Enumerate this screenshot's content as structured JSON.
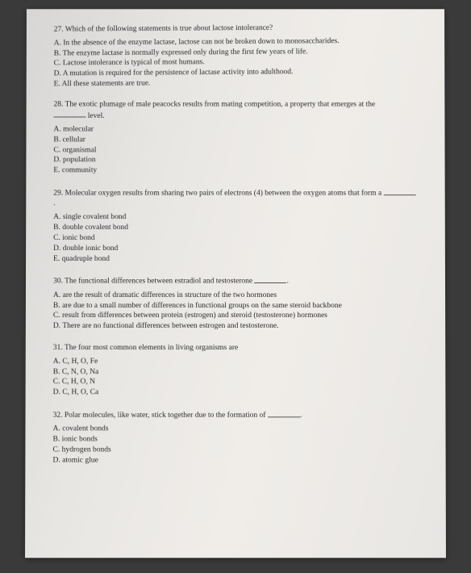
{
  "questions": [
    {
      "number": "27",
      "text": "Which of the following statements is true about lactose intolerance?",
      "options": [
        "A. In the absence of the enzyme lactase, lactose can not be broken down to monosaccharides.",
        "B. The enzyme lactase is normally expressed only during the first few years of life.",
        "C. Lactose intolerance is typical of most humans.",
        "D. A mutation is required for the persistence of lactase activity into adulthood.",
        "E. All these statements are true."
      ]
    },
    {
      "number": "28",
      "text_pre": "The exotic plumage of male peacocks results from mating competition, a property that emerges at the ",
      "text_post": " level.",
      "options": [
        "A. molecular",
        "B. cellular",
        "C. organismal",
        "D. population",
        "E. community"
      ]
    },
    {
      "number": "29",
      "text_pre": "Molecular oxygen results from sharing two pairs of electrons (4) between the oxygen atoms that form a ",
      "text_post": ".",
      "options": [
        "A. single covalent bond",
        "B. double covalent bond",
        "C. ionic bond",
        "D. double ionic bond",
        "E. quadruple bond"
      ]
    },
    {
      "number": "30",
      "text_pre": "The functional differences between estradiol and testosterone ",
      "text_post": ".",
      "options": [
        "A. are the result of dramatic differences in structure of the two hormones",
        "B. are due to a small number of differences in functional groups on the same steroid backbone",
        "C. result from differences between protein (estrogen) and steroid (testosterone) hormones",
        "D. There are no functional differences between estrogen and testosterone."
      ]
    },
    {
      "number": "31",
      "text": "The four most common elements in living organisms are",
      "options": [
        "A. C, H, O, Fe",
        "B. C, N, O, Na",
        "C. C, H, O, N",
        "D. C, H, O, Ca"
      ]
    },
    {
      "number": "32",
      "text_pre": "Polar molecules, like water, stick together due to the formation of ",
      "text_post": ".",
      "options": [
        "A. covalent bonds",
        "B. ionic bonds",
        "C. hydrogen bonds",
        "D. atomic glue"
      ]
    }
  ]
}
